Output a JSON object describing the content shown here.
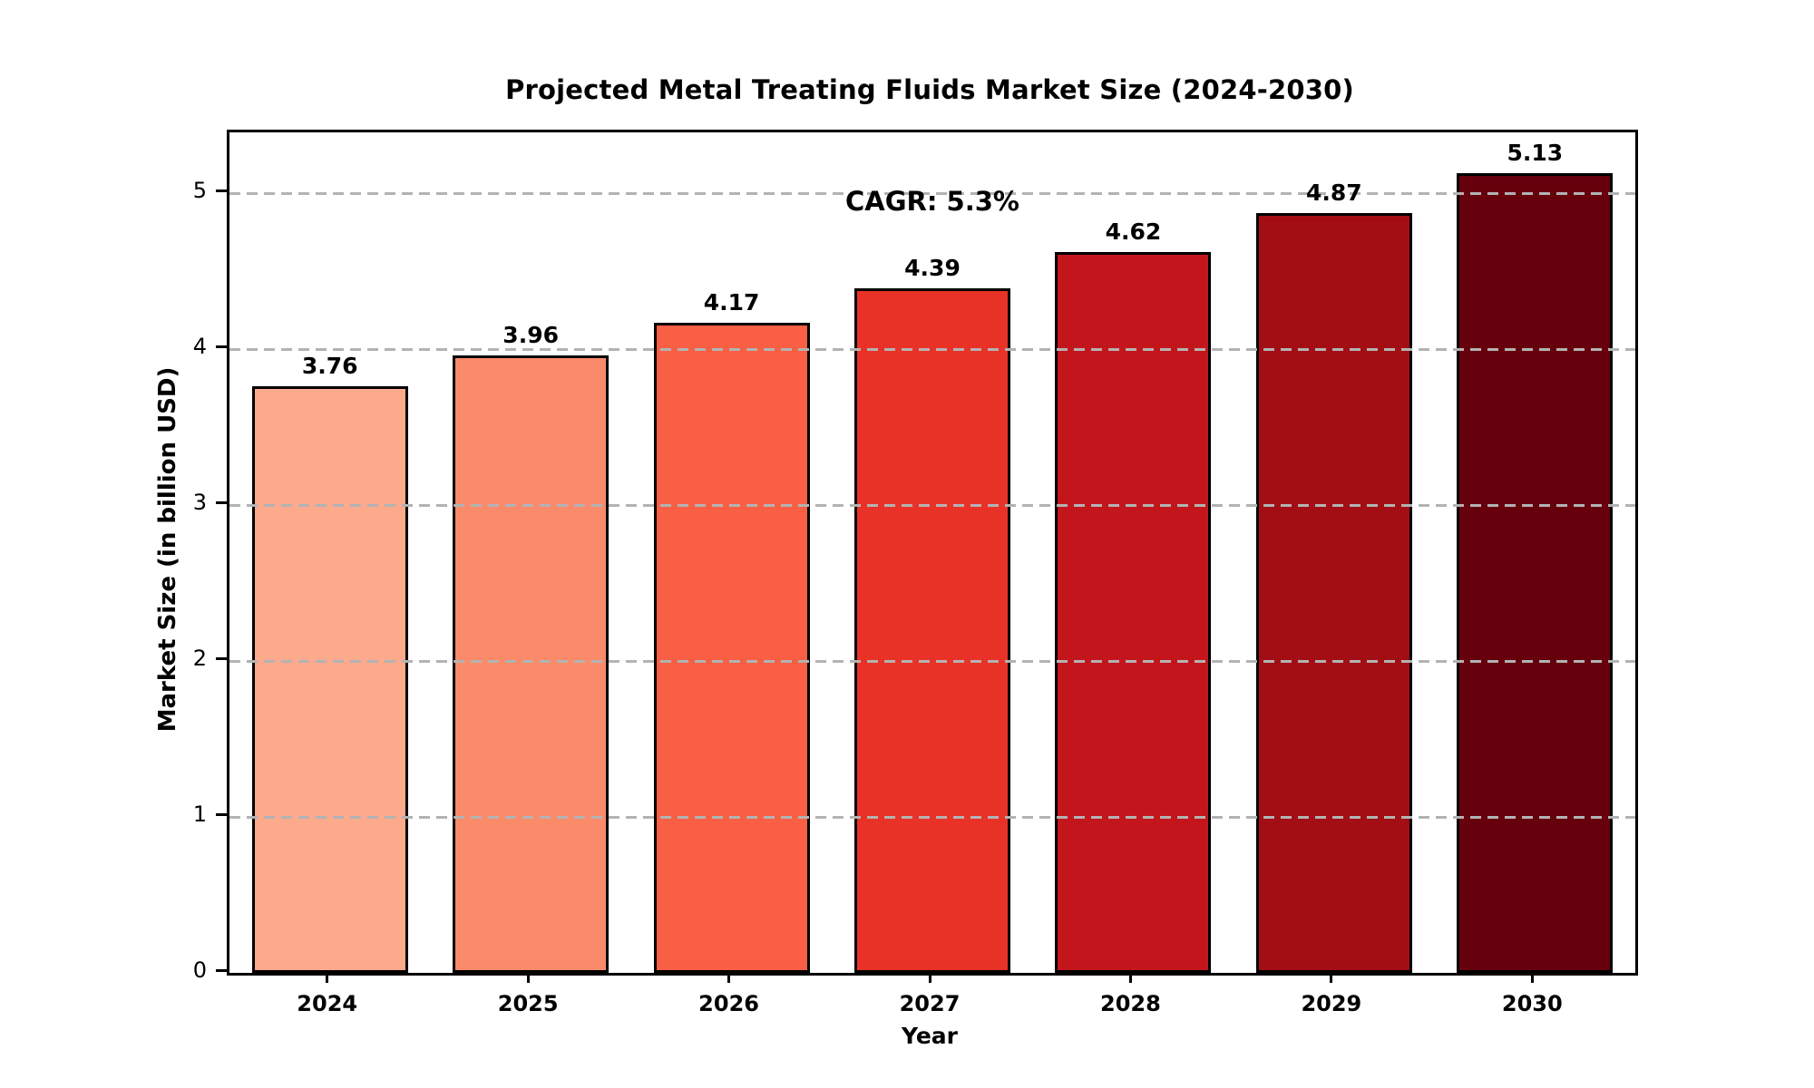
{
  "chart_data": {
    "type": "bar",
    "title": "Projected Metal Treating Fluids Market Size (2024-2030)",
    "xlabel": "Year",
    "ylabel": "Market Size (in billion USD)",
    "categories": [
      "2024",
      "2025",
      "2026",
      "2027",
      "2028",
      "2029",
      "2030"
    ],
    "values": [
      3.76,
      3.96,
      4.17,
      4.39,
      4.62,
      4.87,
      5.13
    ],
    "bar_labels": [
      "3.76",
      "3.96",
      "4.17",
      "4.39",
      "4.62",
      "4.87",
      "5.13"
    ],
    "bar_colors": [
      "#FCA98C",
      "#FB8A6A",
      "#F85F44",
      "#E93227",
      "#C3161C",
      "#A30E15",
      "#67000D"
    ],
    "bar_edge_color": "#000000",
    "annotation": "CAGR: 5.3%",
    "ylim": [
      0,
      5.39
    ],
    "yticks": [
      0,
      1,
      2,
      3,
      4,
      5
    ],
    "gridline_values": [
      1,
      2,
      3,
      4,
      5
    ],
    "grid_style": "dashed",
    "grid_color": "#b3b3b3",
    "grid_above_bars": true,
    "legend": "none"
  }
}
